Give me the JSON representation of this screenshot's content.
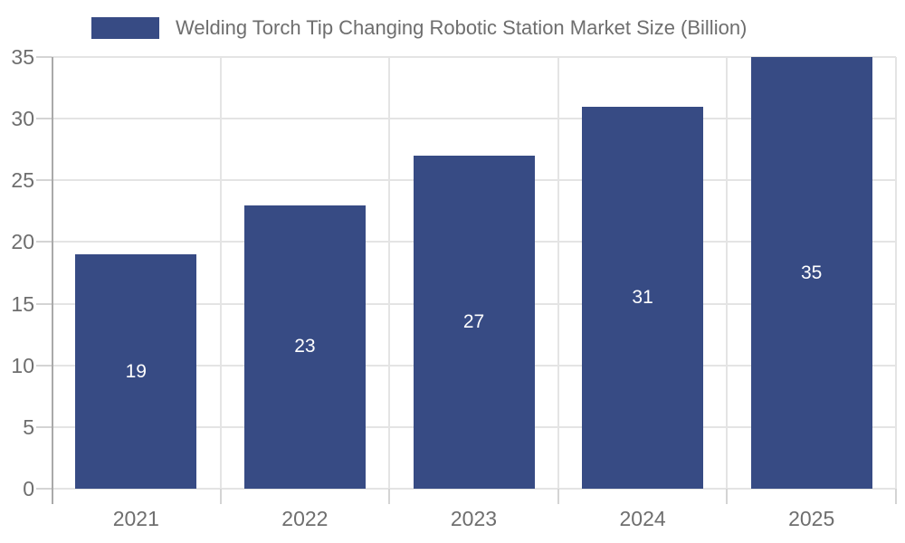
{
  "legend": {
    "label": "Welding Torch Tip Changing Robotic Station Market Size (Billion)"
  },
  "chart_data": {
    "type": "bar",
    "title": "Welding Torch Tip Changing Robotic Station Market Size (Billion)",
    "categories": [
      "2021",
      "2022",
      "2023",
      "2024",
      "2025"
    ],
    "values": [
      19,
      23,
      27,
      31,
      35
    ],
    "value_labels": [
      "19",
      "23",
      "27",
      "31",
      "35"
    ],
    "xlabel": "",
    "ylabel": "",
    "ylim": [
      0,
      35
    ],
    "ytick_step": 5,
    "ytick_labels": [
      "0",
      "5",
      "10",
      "15",
      "20",
      "25",
      "30",
      "35"
    ],
    "grid": true,
    "legend_position": "top",
    "value_label_position": "center-of-bar",
    "colors": {
      "bar": "#374B84",
      "value_label": "#ffffff",
      "gridline": "#e4e4e4",
      "axis_line": "#a9a9a9",
      "tick_mark": "#d4d4d4",
      "tick_text": "#6e6e6e",
      "legend_text": "#6e6e6e",
      "background": "#ffffff"
    }
  }
}
